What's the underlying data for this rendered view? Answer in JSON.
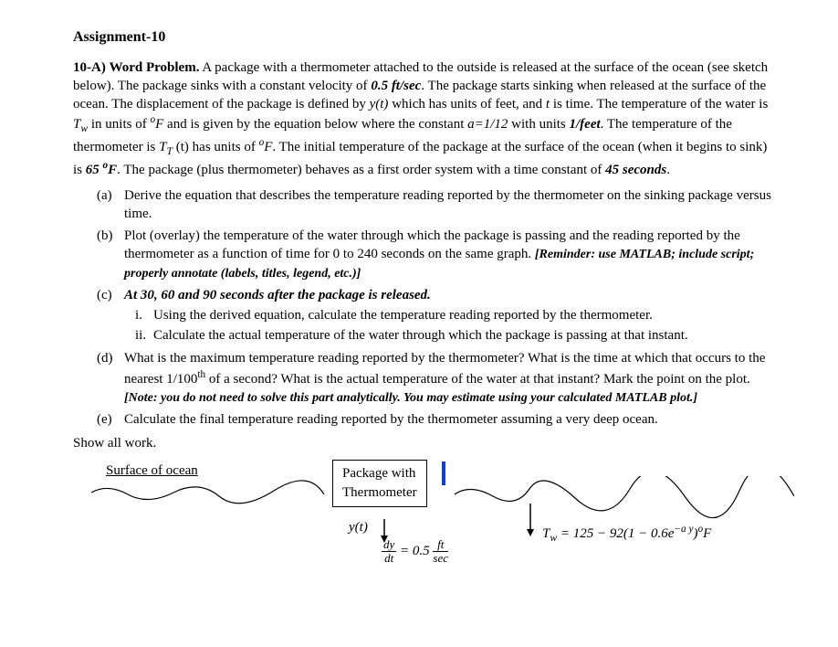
{
  "title": "Assignment-10",
  "problem": {
    "number": "10-A)",
    "heading": "Word Problem.",
    "body_html": "A package with a thermometer attached to the outside is released at the surface of the ocean (see sketch below). The package sinks with a constant velocity of <span class='ital-bold'>0.5 ft/sec</span>. The package starts sinking when released at the surface of the ocean. The displacement of the package is defined by <span class='ital'>y(t)</span> which has units of feet, and <span class='ital'>t</span> is time. The temperature of the water is <span class='ital'>T<span class='sub'>w</span></span> in units of <span class='ital'><span class='sup'>o</span>F</span> and is given by the equation below where the constant <span class='ital'>a=1/12</span> with units <span class='ital-bold'>1/feet</span>. The temperature of the thermometer is <span class='ital'>T<span class='sub'>T</span></span>&nbsp;(t) has units of <span class='ital'><span class='sup'>o</span>F</span>. The initial temperature of the package at the surface of the ocean (when it begins to sink) is <span class='ital-bold'>65 <span class='sup'>o</span>F</span>. The package (plus thermometer) behaves as a first order system with a time constant of <span class='ital-bold'>45 seconds</span>."
  },
  "parts": {
    "a": "Derive the equation that describes the temperature reading reported by the thermometer on the sinking package versus time.",
    "b_html": "Plot (overlay) the temperature of the water through which the package is passing and the reading reported by the thermometer as a function of time for 0 to 240 seconds on the same graph. <span class='note'>[Reminder: use MATLAB; include script; properly annotate (labels, titles, legend, etc.)]</span>",
    "c_intro": "At 30, 60 and 90 seconds after the package is released.",
    "c_i": "Using the derived equation, calculate the temperature reading reported by the thermometer.",
    "c_ii": "Calculate the actual temperature of the water through which the package is passing at that instant.",
    "d_html": "What is the maximum temperature reading reported by the thermometer? What is the time at which that occurs to the nearest 1/100<span class='sup'>th</span> of a second? What is the actual temperature of the water at that instant? Mark the point on the plot. <span class='note'>[Note: you do not need to solve this part analytically. You may estimate using your calculated MATLAB plot.]</span>",
    "e": "Calculate the final temperature reading reported by the thermometer assuming a very deep ocean."
  },
  "show_work": "Show all work.",
  "sketch": {
    "surface_label": "Surface of ocean",
    "package_line1": "Package with",
    "package_line2": "Thermometer",
    "y_label": "y(t)",
    "dy_num": "dy",
    "dy_den": "dt",
    "dy_rhs_html": "= 0.5 <span class='frac'><span class='num small-unit'>ft</span><span class='den small-unit'>sec</span></span>",
    "tw_eq_html": "T<span class='sub'>w</span> = 125 − 92(1 − 0.6e<span class='sup'>−a y</span>)<span class='sup'>o</span>F",
    "wave_color": "#000000",
    "arrow_color": "#000000"
  }
}
